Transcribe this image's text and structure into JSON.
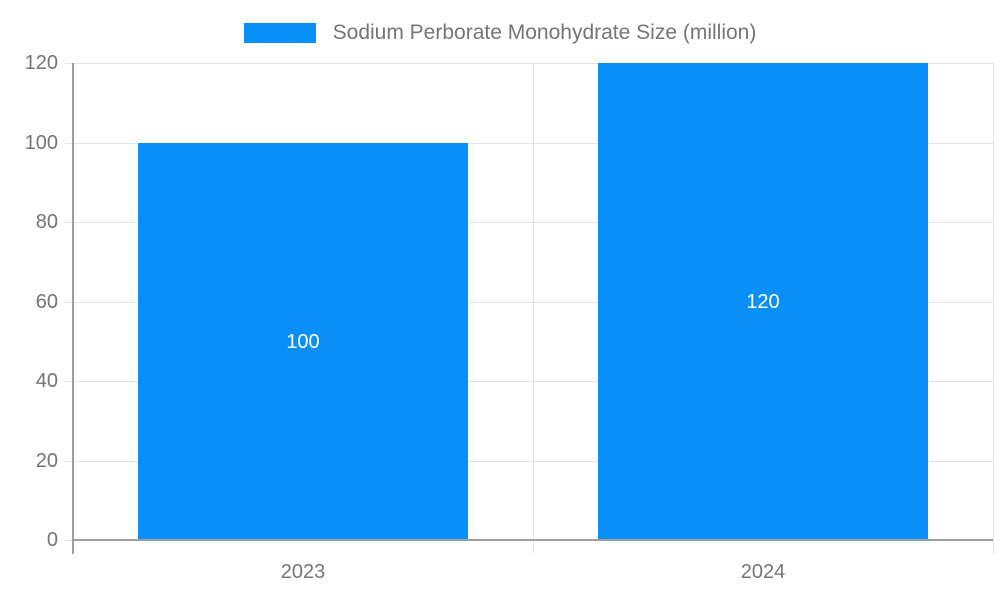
{
  "legend": {
    "label": "Sodium Perborate Monohydrate Size (million)"
  },
  "chart_data": {
    "type": "bar",
    "title": "",
    "categories": [
      "2023",
      "2024"
    ],
    "series": [
      {
        "name": "Sodium Perborate Monohydrate Size (million)",
        "values": [
          100,
          120
        ]
      }
    ],
    "data_labels": [
      "100",
      "120"
    ],
    "xlabel": "",
    "ylabel": "",
    "ylim": [
      0,
      120
    ],
    "yticks": [
      0,
      20,
      40,
      60,
      80,
      100,
      120
    ],
    "grid": true,
    "legend_position": "top"
  },
  "colors": {
    "bar": "#0890f8",
    "bar_label": "#ffffff",
    "axis_text": "#757575",
    "grid_line": "#e3e3e3",
    "axis_line": "#9e9e9e",
    "background": "#ffffff"
  }
}
